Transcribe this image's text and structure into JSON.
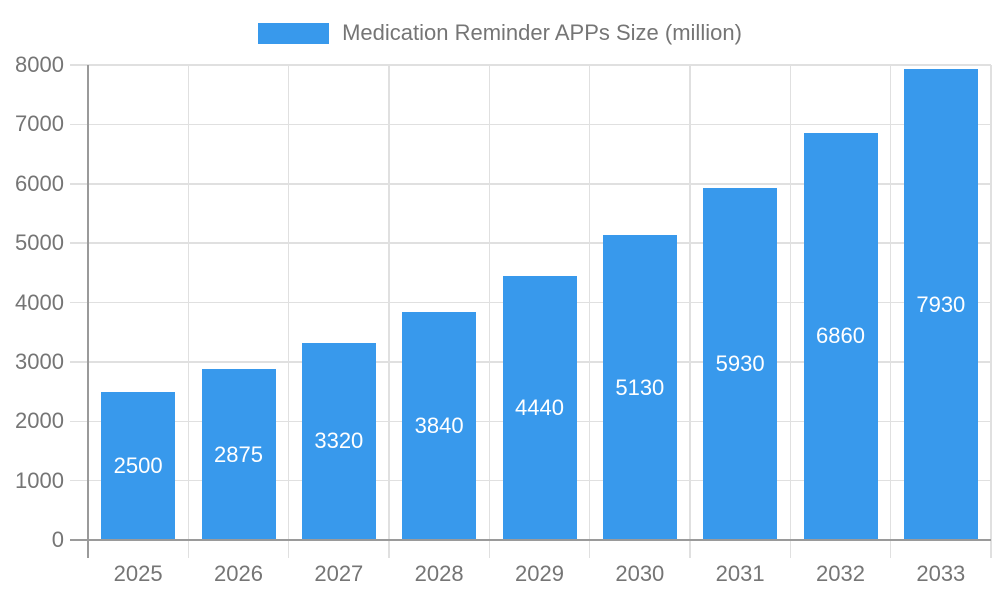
{
  "legend": {
    "label": "Medication Reminder APPs Size (million)",
    "swatch_color": "#3899EC"
  },
  "chart_data": {
    "type": "bar",
    "title": "Medication Reminder APPs Size (million)",
    "categories": [
      "2025",
      "2026",
      "2027",
      "2028",
      "2029",
      "2030",
      "2031",
      "2032",
      "2033"
    ],
    "values": [
      2500,
      2875,
      3320,
      3840,
      4440,
      5130,
      5930,
      6860,
      7930
    ],
    "xlabel": "",
    "ylabel": "",
    "ylim": [
      0,
      8000
    ],
    "yticks": [
      0,
      1000,
      2000,
      3000,
      4000,
      5000,
      6000,
      7000,
      8000
    ],
    "grid": true,
    "legend_position": "top-center",
    "colors": {
      "bar": "#3899EC",
      "value_label": "#FFFFFF",
      "axis_label": "#757575",
      "axis_line": "#9A9A9A",
      "grid_line": "#E0E0E0"
    }
  }
}
